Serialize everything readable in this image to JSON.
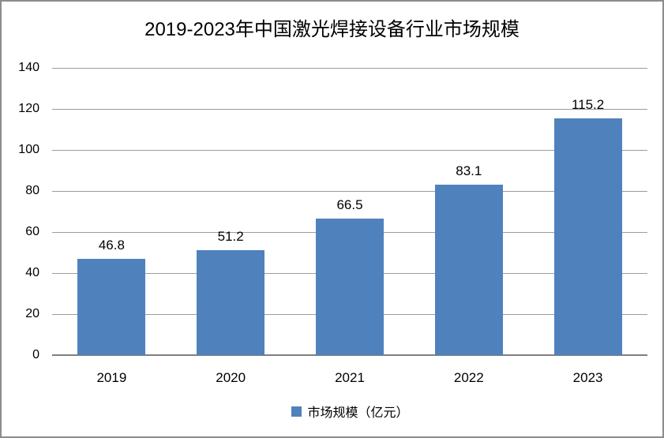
{
  "chart_data": {
    "type": "bar",
    "title": "2019-2023年中国激光焊接设备行业市场规模",
    "categories": [
      "2019",
      "2020",
      "2021",
      "2022",
      "2023"
    ],
    "values": [
      46.8,
      51.2,
      66.5,
      83.1,
      115.2
    ],
    "value_labels": [
      "46.8",
      "51.2",
      "66.5",
      "83.1",
      "115.2"
    ],
    "series_name": "市场规模（亿元）",
    "xlabel": "",
    "ylabel": "",
    "ylim": [
      0,
      140
    ],
    "yticks": [
      0,
      20,
      40,
      60,
      80,
      100,
      120,
      140
    ],
    "grid": true,
    "legend_position": "bottom",
    "bar_color": "#4F81BD",
    "gridline_color": "#9c9c9c",
    "axis_color": "#7f7f7f"
  }
}
